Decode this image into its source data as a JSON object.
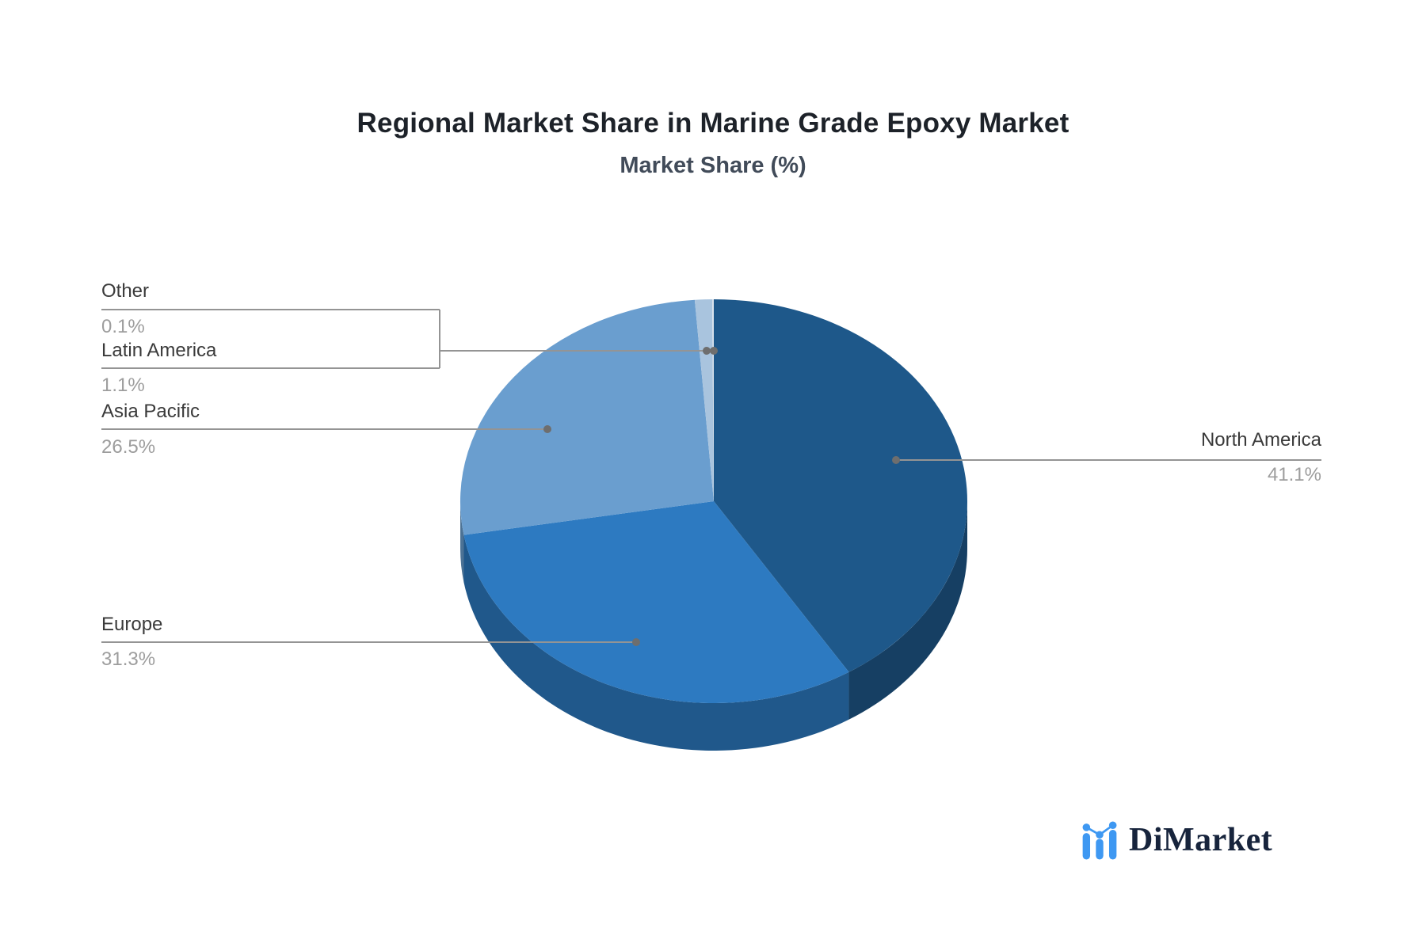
{
  "title": "Regional Market Share in Marine Grade Epoxy Market",
  "subtitle": "Market Share (%)",
  "logo": {
    "text": "DiMarket",
    "icon": "bar-line-chart-icon"
  },
  "chart_data": {
    "type": "pie",
    "title": "Regional Market Share in Marine Grade Epoxy Market",
    "subtitle": "Market Share (%)",
    "unit": "%",
    "effect_3d": true,
    "direction": "clockwise",
    "start_angle_deg": 0,
    "labels": [
      "North America",
      "Europe",
      "Asia Pacific",
      "Latin America",
      "Other"
    ],
    "values": [
      41.1,
      31.3,
      26.5,
      1.1,
      0.1
    ],
    "display_percents": [
      "41.1%",
      "31.3%",
      "26.5%",
      "1.1%",
      "0.1%"
    ],
    "colors": [
      "#1E588A",
      "#2D7AC1",
      "#6A9ECF",
      "#A9C4DE",
      "#D9E2EC"
    ],
    "leader_line_color": "#949494",
    "leader_dot_color": "#6e6e6e",
    "label_color": "#3a3a3a",
    "percent_color": "#9d9d9d"
  }
}
